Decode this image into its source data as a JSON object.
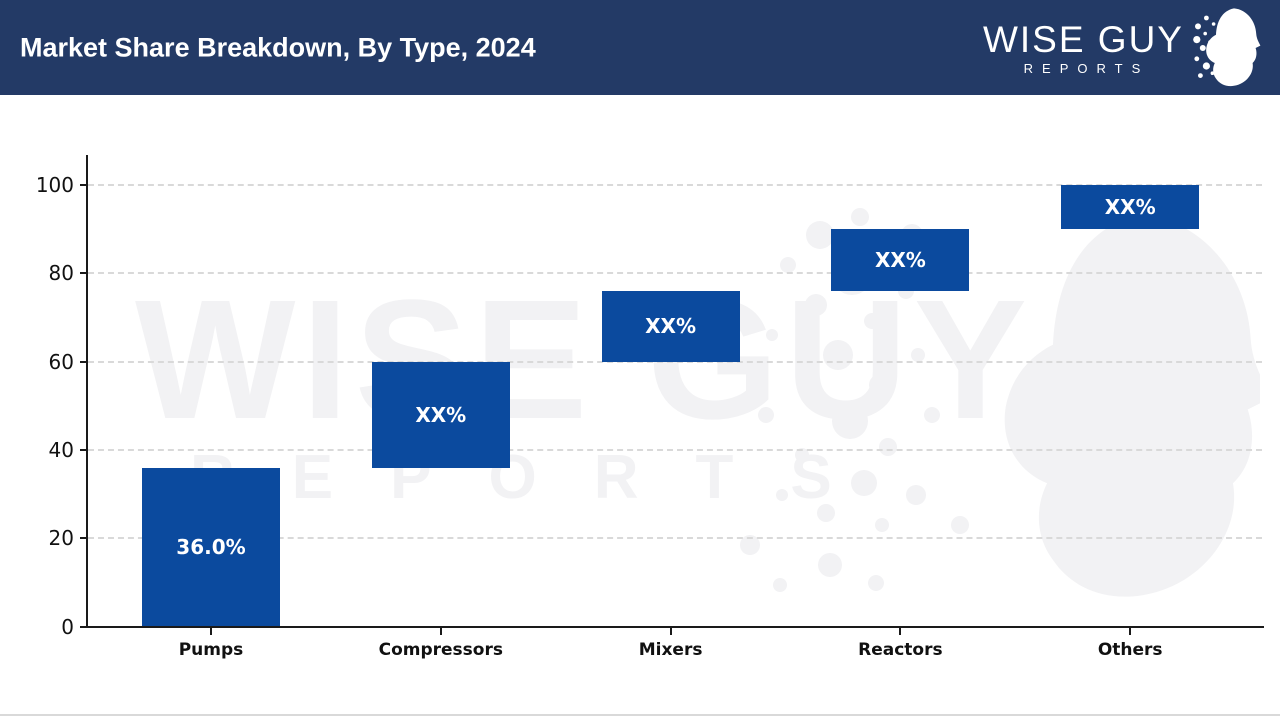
{
  "header": {
    "title": "Market Share Breakdown, By Type, 2024",
    "logo": {
      "line1": "WISE GUY",
      "line2": "REPORTS"
    }
  },
  "watermark": {
    "line1": "WISE GUY",
    "line2": "REPORTS"
  },
  "colors": {
    "header_bg": "#233a66",
    "bar": "#0b4a9e",
    "grid": "#d9d9d9",
    "axis": "#1a1a1a",
    "watermark": "#f2f2f4",
    "label_text": "#ffffff"
  },
  "chart_data": {
    "type": "bar",
    "subtype": "waterfall",
    "title": "Market Share Breakdown, By Type, 2024",
    "categories": [
      "Pumps",
      "Compressors",
      "Mixers",
      "Reactors",
      "Others"
    ],
    "segments": [
      {
        "category": "Pumps",
        "start": 0,
        "end": 36,
        "value": 36,
        "label": "36.0%"
      },
      {
        "category": "Compressors",
        "start": 36,
        "end": 60,
        "value": 24,
        "label": "XX%"
      },
      {
        "category": "Mixers",
        "start": 60,
        "end": 76,
        "value": 16,
        "label": "XX%"
      },
      {
        "category": "Reactors",
        "start": 76,
        "end": 90,
        "value": 14,
        "label": "XX%"
      },
      {
        "category": "Others",
        "start": 90,
        "end": 100,
        "value": 10,
        "label": "XX%"
      }
    ],
    "yticks": [
      0,
      20,
      40,
      60,
      80,
      100
    ],
    "ylim": [
      0,
      107
    ],
    "xlabel": "",
    "ylabel": "",
    "grid": "dashed-horizontal",
    "legend": "none"
  }
}
